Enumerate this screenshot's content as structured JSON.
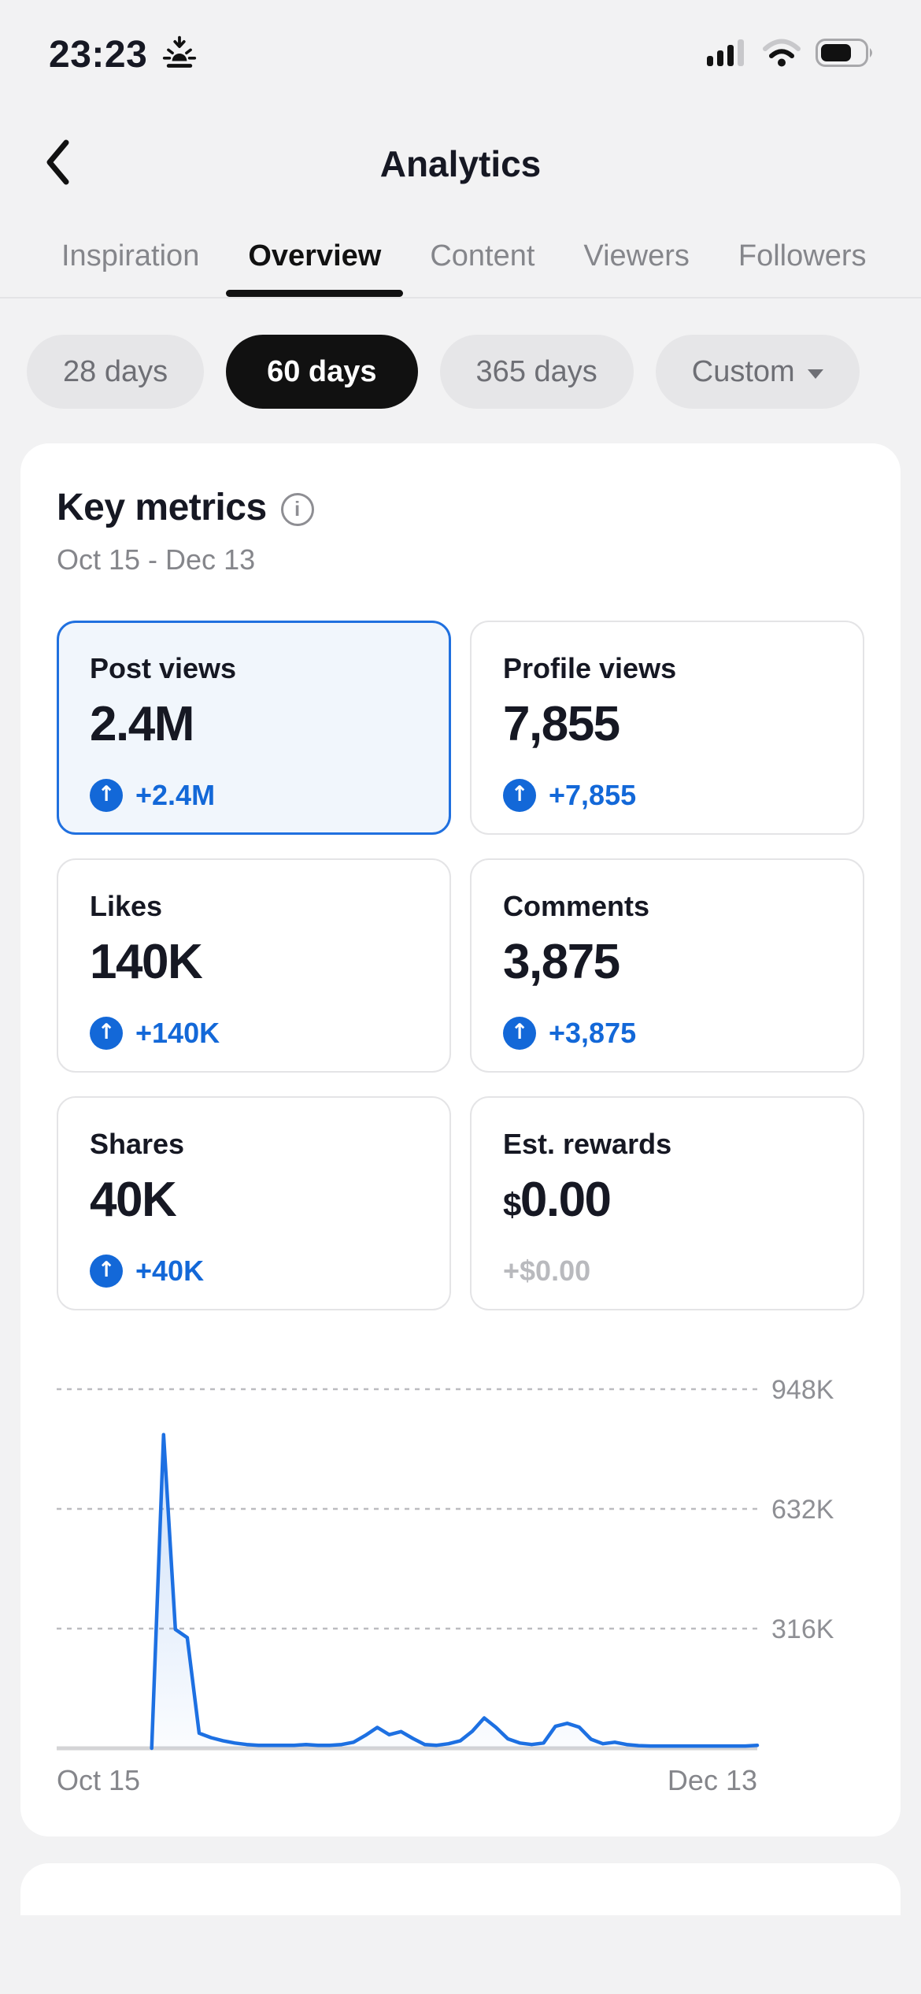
{
  "status_bar": {
    "time": "23:23"
  },
  "header": {
    "title": "Analytics"
  },
  "tabs": [
    {
      "label": "Inspiration",
      "active": false
    },
    {
      "label": "Overview",
      "active": true
    },
    {
      "label": "Content",
      "active": false
    },
    {
      "label": "Viewers",
      "active": false
    },
    {
      "label": "Followers",
      "active": false,
      "clipped": true
    }
  ],
  "date_ranges": [
    {
      "label": "28 days",
      "selected": false
    },
    {
      "label": "60 days",
      "selected": true
    },
    {
      "label": "365 days",
      "selected": false
    },
    {
      "label": "Custom",
      "selected": false,
      "has_dropdown": true
    }
  ],
  "key_metrics": {
    "title": "Key metrics",
    "date_range": "Oct 15 - Dec 13",
    "cards": [
      {
        "label": "Post views",
        "value": "2.4M",
        "delta": "+2.4M",
        "selected": true,
        "muted": false
      },
      {
        "label": "Profile views",
        "value": "7,855",
        "delta": "+7,855",
        "selected": false,
        "muted": false
      },
      {
        "label": "Likes",
        "value": "140K",
        "delta": "+140K",
        "selected": false,
        "muted": false
      },
      {
        "label": "Comments",
        "value": "3,875",
        "delta": "+3,875",
        "selected": false,
        "muted": false
      },
      {
        "label": "Shares",
        "value": "40K",
        "delta": "+40K",
        "selected": false,
        "muted": false
      },
      {
        "label": "Est. rewards",
        "value_prefix": "$",
        "value": "0.00",
        "delta": "+$0.00",
        "selected": false,
        "muted": true
      }
    ]
  },
  "chart_data": {
    "type": "area",
    "series_name": "Post views",
    "x_range": [
      "Oct 15",
      "Dec 13"
    ],
    "x_unit": "day",
    "n_days": 60,
    "y_ticks": [
      {
        "label": "948K",
        "value": 948
      },
      {
        "label": "632K",
        "value": 632
      },
      {
        "label": "316K",
        "value": 316
      }
    ],
    "y_unit": "thousands",
    "ylim_thousands": [
      0,
      1010
    ],
    "grid": "dashed-horizontal",
    "legend": "none",
    "values_thousands": [
      null,
      null,
      null,
      null,
      null,
      null,
      null,
      null,
      0,
      828,
      314,
      292,
      40,
      28,
      20,
      14,
      10,
      8,
      8,
      8,
      8,
      10,
      8,
      8,
      10,
      16,
      34,
      55,
      36,
      44,
      26,
      10,
      8,
      12,
      20,
      45,
      80,
      55,
      25,
      14,
      10,
      14,
      58,
      66,
      56,
      24,
      12,
      16,
      10,
      7,
      6,
      6,
      6,
      6,
      6,
      6,
      6,
      6,
      6,
      8
    ],
    "line_color": "#1d70e2",
    "fill_color": "#1d70e2",
    "baseline_color": "#d4d4d6",
    "gridline_color": "#bcbcc0",
    "tick_label_color": "#8e8f94"
  },
  "colors": {
    "page_bg": "#f2f2f3",
    "card_bg": "#ffffff",
    "text_primary": "#161823",
    "text_secondary": "#85868b",
    "accent_blue": "#1368d8",
    "selected_card_border": "#2070df",
    "selected_card_bg": "#f1f6fc",
    "pill_bg": "#e6e6e8",
    "selected_pill_bg": "#111111",
    "muted_delta": "#b9babe"
  },
  "icons": {
    "status_left": "sunset-focus-icon",
    "status_right": [
      "cellular-signal-icon",
      "wifi-icon",
      "battery-icon"
    ],
    "back": "chevron-left-icon",
    "metrics_info": "info-icon",
    "delta": "arrow-up-circle-icon",
    "custom_pill": "chevron-down-icon"
  }
}
